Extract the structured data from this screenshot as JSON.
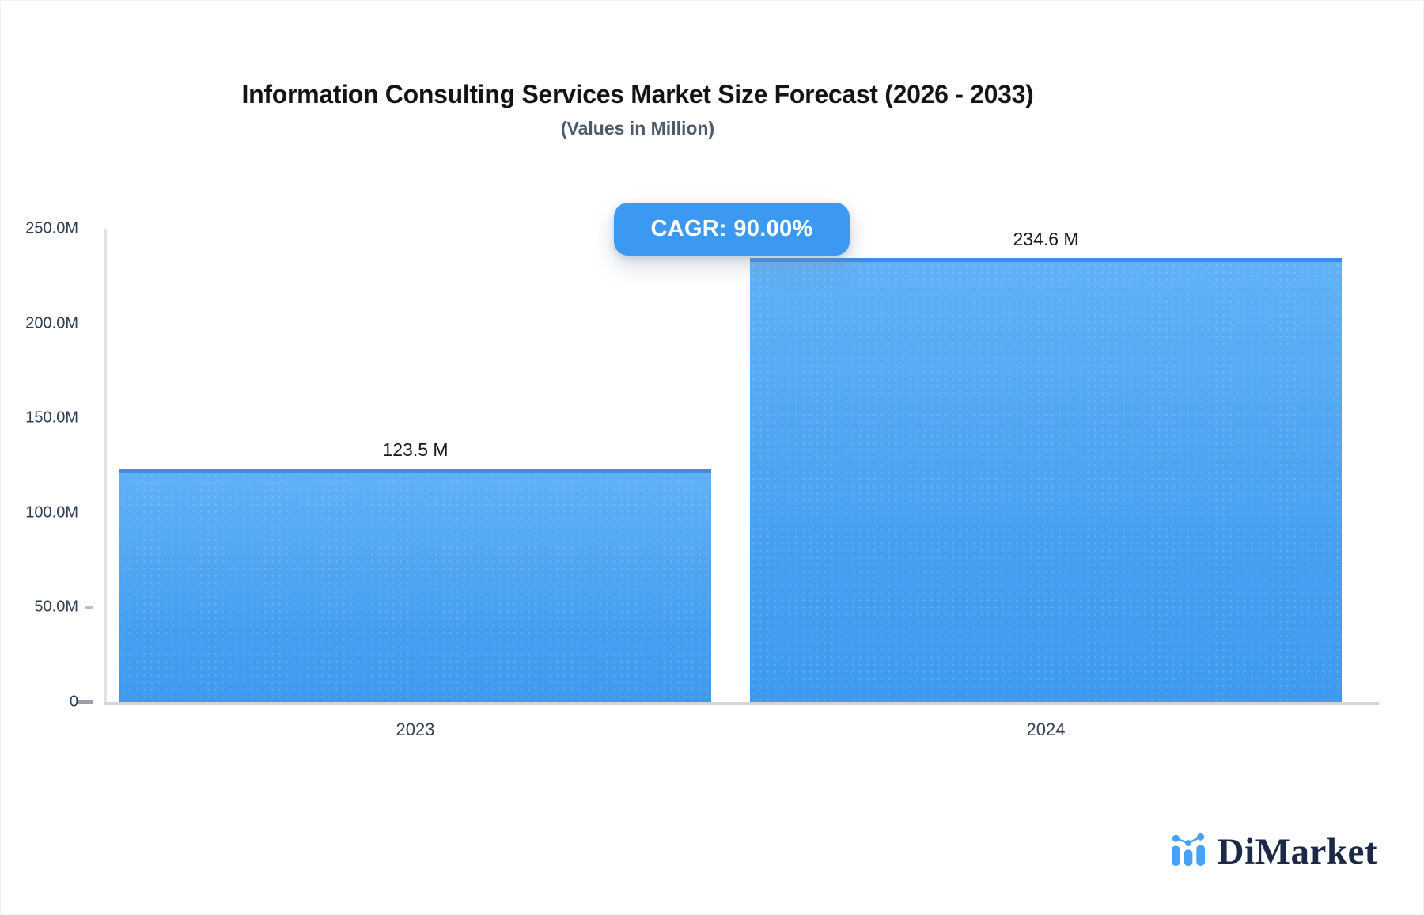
{
  "header": {
    "title": "Information Consulting Services Market Size Forecast (2026 - 2033)",
    "subtitle": "(Values in Million)"
  },
  "badge": {
    "label": "CAGR: 90.00%"
  },
  "colors": {
    "badge_bg": "#3b99f1",
    "bar_top": "#61b1f7",
    "bar_bottom": "#3e9af0",
    "bar_border": "#3a8ee7",
    "axis_line": "#d2d5da",
    "logo_text": "#1b2946",
    "logo_icon_blue": "#47a2f6"
  },
  "chart_data": {
    "type": "bar",
    "title": "Information Consulting Services Market Size Forecast (2026 - 2033)",
    "subtitle": "(Values in Million)",
    "unit": "Million",
    "cagr": "90.00%",
    "categories": [
      "2023",
      "2024"
    ],
    "values": [
      123.5,
      234.6
    ],
    "value_labels": [
      "123.5 M",
      "234.6 M"
    ],
    "ylim": [
      0,
      250
    ],
    "grid": false,
    "legend": false,
    "y_ticks": [
      {
        "label": "250.0M",
        "value": 250,
        "mark": "none"
      },
      {
        "label": "200.0M",
        "value": 200,
        "mark": "none"
      },
      {
        "label": "150.0M",
        "value": 150,
        "mark": "none"
      },
      {
        "label": "100.0M",
        "value": 100,
        "mark": "none"
      },
      {
        "label": "50.0M",
        "value": 50,
        "mark": "small"
      },
      {
        "label": "0",
        "value": 0,
        "mark": "large"
      }
    ]
  },
  "logo": {
    "text": "DiMarket"
  }
}
